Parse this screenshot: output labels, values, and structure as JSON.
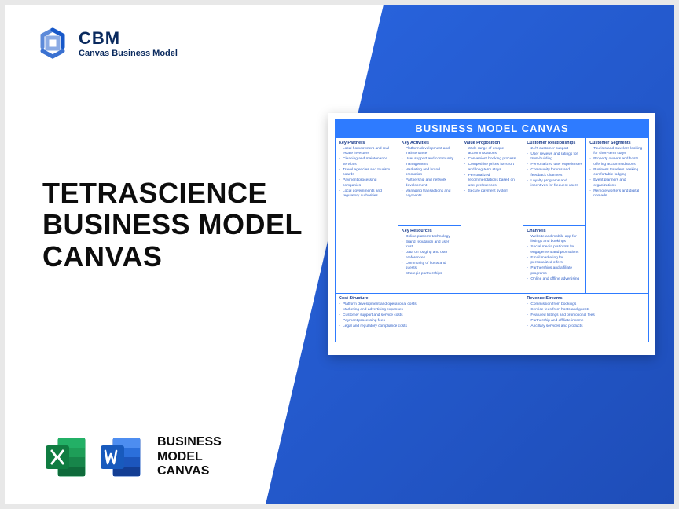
{
  "logo": {
    "abbrev": "CBM",
    "sub": "Canvas Business Model",
    "color": "#1758c9"
  },
  "headline": {
    "line1": "TETRASCIENCE",
    "line2": "BUSINESS MODEL",
    "line3": "CANVAS"
  },
  "bottom": {
    "line1": "BUSINESS",
    "line2": "MODEL",
    "line3": "CANVAS"
  },
  "canvas": {
    "title": "BUSINESS MODEL CANVAS",
    "accent_color": "#2e7bff",
    "text_color": "#2e5fc7",
    "blocks": {
      "key_partners": {
        "heading": "Key Partners",
        "items": [
          "Local homeowners and real estate investors",
          "Cleaning and maintenance services",
          "Travel agencies and tourism boards",
          "Payment processing companies",
          "Local governments and regulatory authorities"
        ]
      },
      "key_activities": {
        "heading": "Key Activities",
        "items": [
          "Platform development and maintenance",
          "User support and community management",
          "Marketing and brand promotion",
          "Partnership and network development",
          "Managing transactions and payments"
        ]
      },
      "key_resources": {
        "heading": "Key Resources",
        "items": [
          "Online platform technology",
          "Brand reputation and user trust",
          "Data on lodging and user preferences",
          "Community of hosts and guests",
          "Strategic partnerships"
        ]
      },
      "value_proposition": {
        "heading": "Value Proposition",
        "items": [
          "Wide range of unique accommodations",
          "Convenient booking process",
          "Competitive prices for short and long-term stays",
          "Personalized recommendations based on user preferences",
          "Secure payment system"
        ]
      },
      "customer_relationships": {
        "heading": "Customer Relationships",
        "items": [
          "24/7 customer support",
          "User reviews and ratings for trust-building",
          "Personalized user experiences",
          "Community forums and feedback channels",
          "Loyalty programs and incentives for frequent users"
        ]
      },
      "channels": {
        "heading": "Channels",
        "items": [
          "Website and mobile app for listings and bookings",
          "Social media platforms for engagement and promotions",
          "Email marketing for personalized offers",
          "Partnerships and affiliate programs",
          "Online and offline advertising"
        ]
      },
      "customer_segments": {
        "heading": "Customer Segments",
        "items": [
          "Tourists and travelers looking for short-term stays",
          "Property owners and hosts offering accommodations",
          "Business travelers seeking comfortable lodging",
          "Event planners and organizations",
          "Remote workers and digital nomads"
        ]
      },
      "cost_structure": {
        "heading": "Cost Structure",
        "items": [
          "Platform development and operational costs",
          "Marketing and advertising expenses",
          "Customer support and service costs",
          "Payment processing fees",
          "Legal and regulatory compliance costs"
        ]
      },
      "revenue_streams": {
        "heading": "Revenue Streams",
        "items": [
          "Commission from bookings",
          "Service fees from hosts and guests",
          "Featured listings and promotional fees",
          "Partnership and affiliate income",
          "Ancillary services and products"
        ]
      }
    }
  },
  "icons": {
    "excel_color": "#107c41",
    "word_color": "#185abd"
  }
}
